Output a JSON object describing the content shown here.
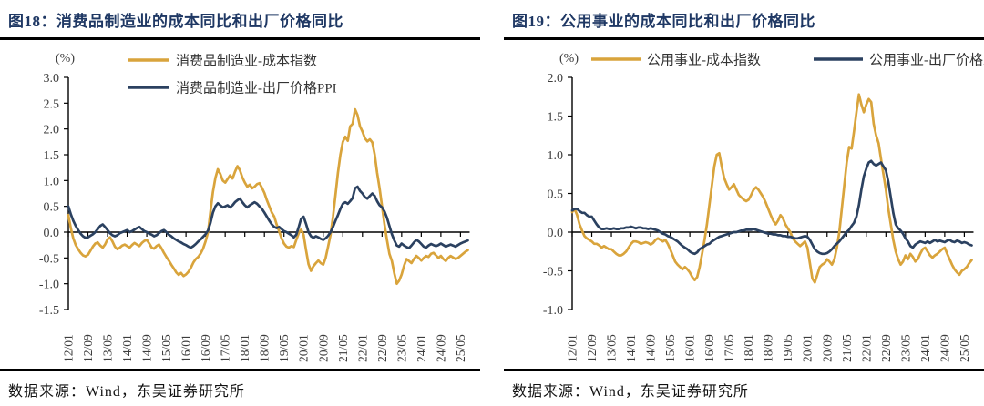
{
  "colors": {
    "gold": "#D9A43C",
    "navy": "#2B4160",
    "title": "#1F3864",
    "axis": "#000000",
    "tick_text": "#3d3d3d"
  },
  "chart_data": [
    {
      "type": "line",
      "title": "图18：消费品制造业的成本同比和出厂价格同比",
      "source": "数据来源：Wind，东吴证券研究所",
      "unit": "(%)",
      "ylim": [
        -1.5,
        3.0
      ],
      "yticks": [
        3.0,
        2.5,
        2.0,
        1.5,
        1.0,
        0.5,
        0.0,
        -0.5,
        -1.0,
        -1.5
      ],
      "grid": "off",
      "legend_position": "top-stacked",
      "x_first": "12/01",
      "x_last": "25/08",
      "xtick_every_n_months": 8,
      "xtick_labels": [
        "12/01",
        "12/09",
        "13/05",
        "14/01",
        "14/09",
        "15/05",
        "16/01",
        "16/09",
        "17/05",
        "18/01",
        "18/09",
        "19/05",
        "20/01",
        "20/09",
        "21/05",
        "22/01",
        "22/09",
        "23/05",
        "24/01",
        "24/09",
        "25/05"
      ],
      "series": [
        {
          "name": "消费品制造业-成本指数",
          "color_key": "gold",
          "values": [
            0.33,
            0.08,
            -0.12,
            -0.25,
            -0.33,
            -0.4,
            -0.45,
            -0.47,
            -0.44,
            -0.36,
            -0.28,
            -0.22,
            -0.2,
            -0.26,
            -0.3,
            -0.24,
            -0.14,
            -0.1,
            -0.18,
            -0.28,
            -0.33,
            -0.3,
            -0.26,
            -0.24,
            -0.27,
            -0.3,
            -0.25,
            -0.21,
            -0.24,
            -0.27,
            -0.21,
            -0.17,
            -0.15,
            -0.22,
            -0.3,
            -0.32,
            -0.27,
            -0.24,
            -0.31,
            -0.4,
            -0.48,
            -0.55,
            -0.63,
            -0.7,
            -0.78,
            -0.83,
            -0.79,
            -0.85,
            -0.82,
            -0.77,
            -0.69,
            -0.59,
            -0.52,
            -0.48,
            -0.41,
            -0.32,
            -0.18,
            0.0,
            0.4,
            0.78,
            1.05,
            1.22,
            1.13,
            1.0,
            0.96,
            1.03,
            1.1,
            1.04,
            1.17,
            1.28,
            1.2,
            1.06,
            0.96,
            0.88,
            0.92,
            0.85,
            0.88,
            0.93,
            0.95,
            0.86,
            0.76,
            0.62,
            0.5,
            0.38,
            0.3,
            0.15,
            0.02,
            -0.12,
            -0.22,
            -0.28,
            -0.3,
            -0.27,
            -0.29,
            -0.15,
            -0.02,
            0.05,
            -0.05,
            -0.35,
            -0.62,
            -0.75,
            -0.66,
            -0.6,
            -0.55,
            -0.6,
            -0.63,
            -0.5,
            -0.28,
            -0.05,
            0.3,
            0.72,
            1.15,
            1.5,
            1.75,
            1.85,
            1.77,
            2.05,
            2.1,
            2.38,
            2.27,
            2.05,
            1.95,
            1.82,
            1.76,
            1.8,
            1.74,
            1.5,
            1.15,
            0.85,
            0.5,
            0.15,
            -0.15,
            -0.42,
            -0.56,
            -0.8,
            -1.0,
            -0.94,
            -0.82,
            -0.65,
            -0.52,
            -0.56,
            -0.6,
            -0.52,
            -0.46,
            -0.5,
            -0.55,
            -0.5,
            -0.46,
            -0.48,
            -0.42,
            -0.4,
            -0.45,
            -0.5,
            -0.46,
            -0.52,
            -0.56,
            -0.5,
            -0.46,
            -0.49,
            -0.52,
            -0.5,
            -0.46,
            -0.42,
            -0.38,
            -0.35
          ]
        },
        {
          "name": "消费品制造业-出厂价格PPI",
          "color_key": "navy",
          "values": [
            0.5,
            0.35,
            0.22,
            0.12,
            0.04,
            -0.03,
            -0.08,
            -0.11,
            -0.1,
            -0.07,
            -0.04,
            0.0,
            0.06,
            0.12,
            0.15,
            0.1,
            0.04,
            -0.02,
            -0.06,
            -0.08,
            -0.06,
            -0.02,
            0.0,
            0.02,
            0.04,
            0.0,
            0.02,
            0.05,
            0.08,
            0.1,
            0.06,
            0.02,
            0.0,
            -0.03,
            -0.05,
            -0.08,
            -0.06,
            -0.02,
            0.02,
            0.04,
            0.0,
            -0.05,
            -0.08,
            -0.12,
            -0.15,
            -0.18,
            -0.2,
            -0.23,
            -0.25,
            -0.28,
            -0.3,
            -0.27,
            -0.23,
            -0.18,
            -0.14,
            -0.09,
            -0.04,
            0.03,
            0.18,
            0.38,
            0.5,
            0.56,
            0.52,
            0.48,
            0.5,
            0.52,
            0.48,
            0.52,
            0.58,
            0.62,
            0.65,
            0.58,
            0.52,
            0.48,
            0.52,
            0.55,
            0.58,
            0.55,
            0.5,
            0.45,
            0.38,
            0.3,
            0.22,
            0.15,
            0.1,
            0.08,
            0.1,
            0.06,
            0.02,
            0.0,
            -0.03,
            -0.06,
            -0.1,
            -0.05,
            0.1,
            0.26,
            0.3,
            0.16,
            0.0,
            -0.08,
            -0.11,
            -0.08,
            -0.1,
            -0.13,
            -0.15,
            -0.12,
            -0.07,
            0.0,
            0.1,
            0.22,
            0.33,
            0.45,
            0.55,
            0.58,
            0.55,
            0.6,
            0.66,
            0.85,
            0.88,
            0.8,
            0.75,
            0.68,
            0.65,
            0.7,
            0.75,
            0.7,
            0.6,
            0.52,
            0.48,
            0.4,
            0.28,
            0.12,
            -0.04,
            -0.16,
            -0.26,
            -0.28,
            -0.22,
            -0.26,
            -0.29,
            -0.31,
            -0.26,
            -0.2,
            -0.15,
            -0.18,
            -0.23,
            -0.28,
            -0.3,
            -0.26,
            -0.23,
            -0.25,
            -0.27,
            -0.25,
            -0.22,
            -0.25,
            -0.28,
            -0.26,
            -0.24,
            -0.26,
            -0.28,
            -0.25,
            -0.22,
            -0.2,
            -0.18,
            -0.16
          ]
        }
      ]
    },
    {
      "type": "line",
      "title": "图19：公用事业的成本同比和出厂价格同比",
      "source": "数据来源：Wind，东吴证券研究所",
      "unit": "(%)",
      "ylim": [
        -1.0,
        2.0
      ],
      "yticks": [
        2.0,
        1.5,
        1.0,
        0.5,
        0.0,
        -0.5,
        -1.0
      ],
      "grid": "off",
      "legend_position": "top-inline",
      "x_first": "12/01",
      "x_last": "25/08",
      "xtick_every_n_months": 8,
      "xtick_labels": [
        "12/01",
        "12/09",
        "13/05",
        "14/01",
        "14/09",
        "15/05",
        "16/01",
        "16/09",
        "17/05",
        "18/01",
        "18/09",
        "19/05",
        "20/01",
        "20/09",
        "21/05",
        "22/01",
        "22/09",
        "23/05",
        "24/01",
        "24/09",
        "25/05"
      ],
      "series": [
        {
          "name": "公用事业-成本指数",
          "color_key": "gold",
          "values": [
            0.26,
            0.3,
            0.22,
            0.1,
            0.02,
            -0.05,
            -0.08,
            -0.1,
            -0.12,
            -0.15,
            -0.15,
            -0.17,
            -0.2,
            -0.18,
            -0.2,
            -0.22,
            -0.22,
            -0.25,
            -0.28,
            -0.3,
            -0.3,
            -0.28,
            -0.25,
            -0.2,
            -0.15,
            -0.12,
            -0.12,
            -0.13,
            -0.15,
            -0.14,
            -0.13,
            -0.14,
            -0.16,
            -0.14,
            -0.1,
            -0.08,
            -0.1,
            -0.12,
            -0.1,
            -0.15,
            -0.22,
            -0.3,
            -0.38,
            -0.42,
            -0.45,
            -0.48,
            -0.45,
            -0.48,
            -0.52,
            -0.58,
            -0.62,
            -0.58,
            -0.45,
            -0.28,
            -0.1,
            0.1,
            0.35,
            0.6,
            0.85,
            1.0,
            1.02,
            0.85,
            0.7,
            0.62,
            0.55,
            0.58,
            0.62,
            0.55,
            0.48,
            0.45,
            0.42,
            0.4,
            0.42,
            0.48,
            0.55,
            0.58,
            0.55,
            0.5,
            0.45,
            0.38,
            0.3,
            0.22,
            0.15,
            0.1,
            0.15,
            0.22,
            0.18,
            0.1,
            0.05,
            0.0,
            -0.08,
            -0.12,
            -0.15,
            -0.18,
            -0.15,
            -0.12,
            -0.2,
            -0.4,
            -0.6,
            -0.65,
            -0.55,
            -0.45,
            -0.42,
            -0.4,
            -0.35,
            -0.38,
            -0.42,
            -0.35,
            -0.2,
            0.0,
            0.3,
            0.6,
            0.9,
            1.1,
            1.08,
            1.3,
            1.55,
            1.78,
            1.65,
            1.55,
            1.65,
            1.72,
            1.68,
            1.4,
            1.25,
            1.15,
            0.95,
            0.75,
            0.55,
            0.3,
            0.1,
            -0.1,
            -0.25,
            -0.35,
            -0.42,
            -0.38,
            -0.3,
            -0.35,
            -0.28,
            -0.32,
            -0.38,
            -0.35,
            -0.28,
            -0.22,
            -0.2,
            -0.25,
            -0.3,
            -0.33,
            -0.3,
            -0.28,
            -0.25,
            -0.22,
            -0.2,
            -0.28,
            -0.35,
            -0.42,
            -0.48,
            -0.52,
            -0.55,
            -0.5,
            -0.48,
            -0.45,
            -0.4,
            -0.36
          ]
        },
        {
          "name": "公用事业-出厂价格PPI",
          "color_key": "navy",
          "values": [
            0.28,
            0.3,
            0.3,
            0.27,
            0.25,
            0.25,
            0.22,
            0.2,
            0.2,
            0.15,
            0.1,
            0.06,
            0.04,
            0.04,
            0.05,
            0.04,
            0.04,
            0.05,
            0.04,
            0.04,
            0.05,
            0.05,
            0.06,
            0.06,
            0.07,
            0.06,
            0.05,
            0.06,
            0.06,
            0.05,
            0.05,
            0.04,
            0.05,
            0.04,
            0.03,
            0.02,
            0.0,
            -0.02,
            -0.03,
            -0.05,
            -0.06,
            -0.08,
            -0.1,
            -0.12,
            -0.15,
            -0.18,
            -0.2,
            -0.22,
            -0.25,
            -0.27,
            -0.28,
            -0.26,
            -0.22,
            -0.2,
            -0.18,
            -0.16,
            -0.15,
            -0.12,
            -0.1,
            -0.08,
            -0.06,
            -0.05,
            -0.04,
            -0.03,
            -0.02,
            -0.01,
            0.0,
            0.0,
            0.01,
            0.02,
            0.02,
            0.03,
            0.03,
            0.03,
            0.04,
            0.03,
            0.02,
            0.01,
            0.0,
            -0.01,
            -0.02,
            -0.02,
            -0.03,
            -0.03,
            -0.04,
            -0.04,
            -0.05,
            -0.05,
            -0.06,
            -0.06,
            -0.07,
            -0.08,
            -0.08,
            -0.07,
            -0.06,
            -0.05,
            -0.06,
            -0.1,
            -0.16,
            -0.22,
            -0.25,
            -0.27,
            -0.28,
            -0.28,
            -0.27,
            -0.25,
            -0.22,
            -0.18,
            -0.15,
            -0.12,
            -0.08,
            -0.04,
            0.0,
            0.03,
            0.08,
            0.12,
            0.2,
            0.35,
            0.55,
            0.72,
            0.82,
            0.9,
            0.92,
            0.88,
            0.86,
            0.88,
            0.9,
            0.85,
            0.8,
            0.65,
            0.45,
            0.25,
            0.1,
            0.05,
            0.02,
            -0.02,
            -0.08,
            -0.12,
            -0.18,
            -0.2,
            -0.16,
            -0.14,
            -0.12,
            -0.13,
            -0.14,
            -0.12,
            -0.14,
            -0.12,
            -0.1,
            -0.12,
            -0.11,
            -0.12,
            -0.13,
            -0.11,
            -0.1,
            -0.12,
            -0.13,
            -0.11,
            -0.12,
            -0.14,
            -0.13,
            -0.14,
            -0.16,
            -0.17
          ]
        }
      ]
    }
  ]
}
